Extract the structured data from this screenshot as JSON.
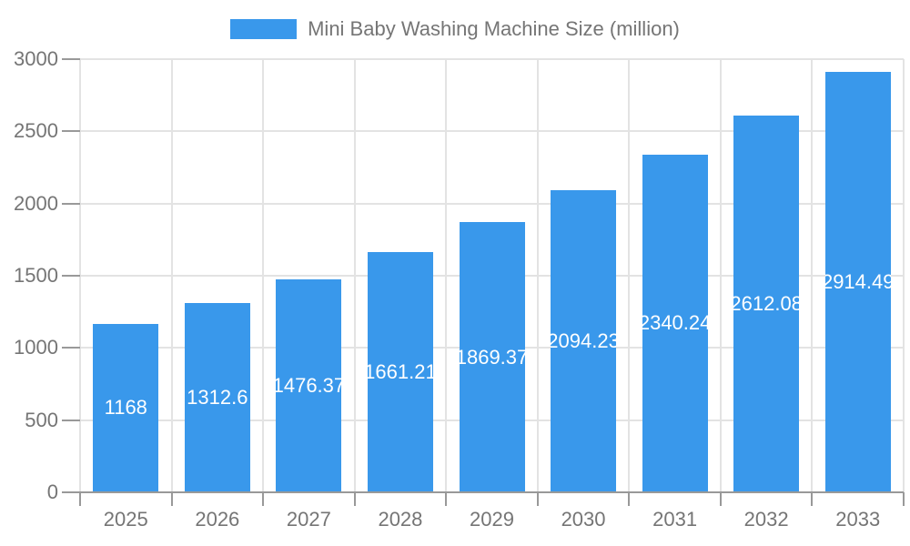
{
  "chart_data": {
    "type": "bar",
    "title": "Mini Baby Washing Machine Size (million)",
    "categories": [
      "2025",
      "2026",
      "2027",
      "2028",
      "2029",
      "2030",
      "2031",
      "2032",
      "2033"
    ],
    "values": [
      1168,
      1312.6,
      1476.37,
      1661.21,
      1869.37,
      2094.23,
      2340.24,
      2612.08,
      2914.49
    ],
    "xlabel": "",
    "ylabel": "",
    "ylim": [
      0,
      3000
    ],
    "yticks": [
      0,
      500,
      1000,
      1500,
      2000,
      2500,
      3000
    ],
    "grid": true,
    "legend_position": "top-center",
    "bar_label_position": "inside-center",
    "colors": {
      "bar": "#3998EB",
      "bar_label_text": "#FFFFFF",
      "axis_text": "#757575",
      "legend_text": "#757575",
      "gridline": "#E3E3E3",
      "axis_line": "#999999"
    }
  }
}
